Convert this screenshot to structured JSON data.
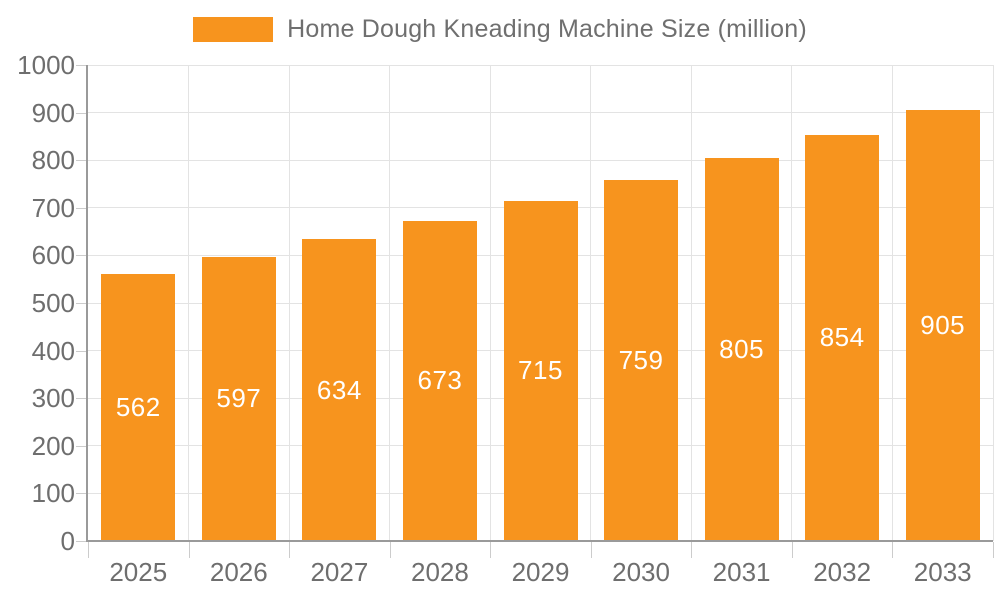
{
  "chart_data": {
    "type": "bar",
    "title": "Home Dough Kneading Machine Size (million)",
    "categories": [
      "2025",
      "2026",
      "2027",
      "2028",
      "2029",
      "2030",
      "2031",
      "2032",
      "2033"
    ],
    "series": [
      {
        "name": "Home Dough Kneading Machine Size (million)",
        "values": [
          562,
          597,
          634,
          673,
          715,
          759,
          805,
          854,
          905
        ]
      }
    ],
    "xlabel": "",
    "ylabel": "",
    "ylim": [
      0,
      1000
    ],
    "ytick_step": 100,
    "grid": true,
    "legend_position": "top",
    "data_labels": "inside-center"
  },
  "colors": {
    "bar": "#F7941E",
    "bar_label": "#FFFFFF",
    "axis_line": "#9A9A9A",
    "gridline": "#E3E3E3",
    "tick": "#CCCCCC",
    "tick_text": "#6E6E6E",
    "legend_text": "#6F6F6F",
    "background": "#FFFFFF"
  }
}
